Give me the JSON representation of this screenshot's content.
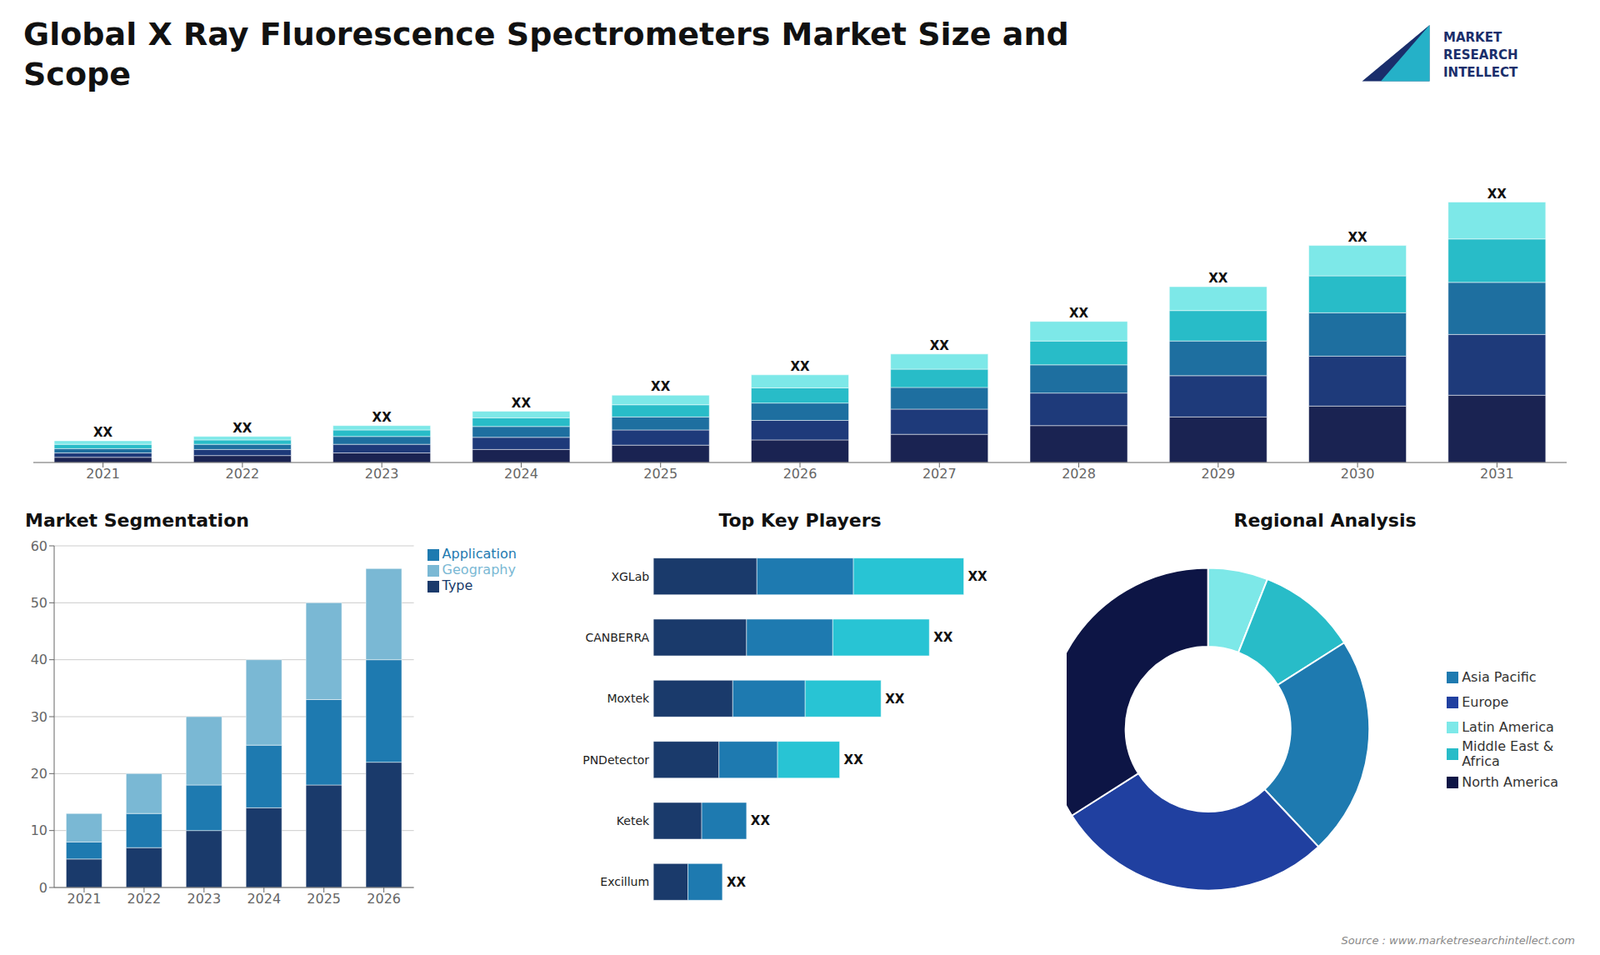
{
  "chart_data": [
    {
      "type": "bar",
      "title": "Global X Ray Fluorescence Spectrometers Market Size and\nScope",
      "stacked": true,
      "categories": [
        2021,
        2022,
        2023,
        2024,
        2025,
        2026,
        2027,
        2028,
        2029,
        2030,
        2031
      ],
      "series": [
        {
          "color": "#1a2352",
          "values": [
            1.2,
            1.6,
            2.2,
            3.0,
            4.0,
            5.2,
            6.5,
            8.5,
            10.5,
            13.0,
            15.5
          ]
        },
        {
          "color": "#1e3a7a",
          "values": [
            1.0,
            1.4,
            2.0,
            2.8,
            3.5,
            4.5,
            5.8,
            7.5,
            9.5,
            11.5,
            14.0
          ]
        },
        {
          "color": "#1e6fa0",
          "values": [
            1.0,
            1.2,
            1.8,
            2.5,
            3.0,
            4.0,
            5.0,
            6.5,
            8.0,
            10.0,
            12.0
          ]
        },
        {
          "color": "#28bcc8",
          "values": [
            1.0,
            1.0,
            1.5,
            2.0,
            2.8,
            3.5,
            4.2,
            5.5,
            7.0,
            8.5,
            10.0
          ]
        },
        {
          "color": "#7de8e8",
          "values": [
            0.8,
            0.8,
            1.0,
            1.5,
            2.2,
            3.0,
            3.5,
            4.5,
            5.5,
            7.0,
            8.5
          ]
        }
      ],
      "ylim": [
        0,
        76.8
      ],
      "tick_labels": "x",
      "grid": false,
      "annotations": [
        "XX",
        "XX",
        "XX",
        "XX",
        "XX",
        "XX",
        "XX",
        "XX",
        "XX",
        "XX",
        "XX"
      ]
    },
    {
      "type": "bar",
      "title": "Market Segmentation",
      "stacked": true,
      "categories": [
        "2021",
        "2022",
        "2023",
        "2024",
        "2025",
        "2026"
      ],
      "series": [
        {
          "name": "Type",
          "color": "#1a3a6b",
          "values": [
            5,
            7,
            10,
            14,
            18,
            22
          ]
        },
        {
          "name": "Application",
          "color": "#1e7ab0",
          "values": [
            3,
            6,
            8,
            11,
            15,
            18
          ]
        },
        {
          "name": "Geography",
          "color": "#7ab8d4",
          "values": [
            5,
            7,
            12,
            15,
            17,
            16
          ]
        }
      ],
      "ylim": [
        0,
        60
      ],
      "yticks": [
        0,
        10,
        20,
        30,
        40,
        50,
        60
      ],
      "grid": true,
      "legend": "right"
    },
    {
      "type": "bar",
      "title": "Top Key Players",
      "stacked": true,
      "orientation": "horizontal",
      "categories": [
        "XGLab",
        "CANBERRA",
        "Moxtek",
        "PNDetector",
        "Ketek",
        "Excillum"
      ],
      "series": [
        {
          "color": "#1a3a6b",
          "values": [
            30,
            27,
            23,
            19,
            14,
            10
          ]
        },
        {
          "color": "#1e7ab0",
          "values": [
            28,
            25,
            21,
            17,
            13,
            10
          ]
        },
        {
          "color": "#28c4d4",
          "values": [
            32,
            28,
            22,
            18,
            0,
            0
          ]
        }
      ],
      "xlim": [
        -30,
        115
      ],
      "tick_labels": false,
      "grid": false,
      "annotations": [
        "XX",
        "XX",
        "XX",
        "XX",
        "XX",
        "XX"
      ]
    },
    {
      "type": "pie",
      "title": "Regional Analysis",
      "categories": [
        "Latin America",
        "Middle East &\nAfrica",
        "Asia Pacific",
        "Europe",
        "North America"
      ],
      "values": [
        6,
        10,
        22,
        28,
        34
      ],
      "colors": [
        "#7de8e8",
        "#28bcc8",
        "#1e7ab0",
        "#2040a0",
        "#0d1545"
      ],
      "legend": "right",
      "annotations": [
        "Source : www.marketresearchintellect.com",
        "MARKET\nRESEARCH\nINTELLECT"
      ]
    }
  ]
}
